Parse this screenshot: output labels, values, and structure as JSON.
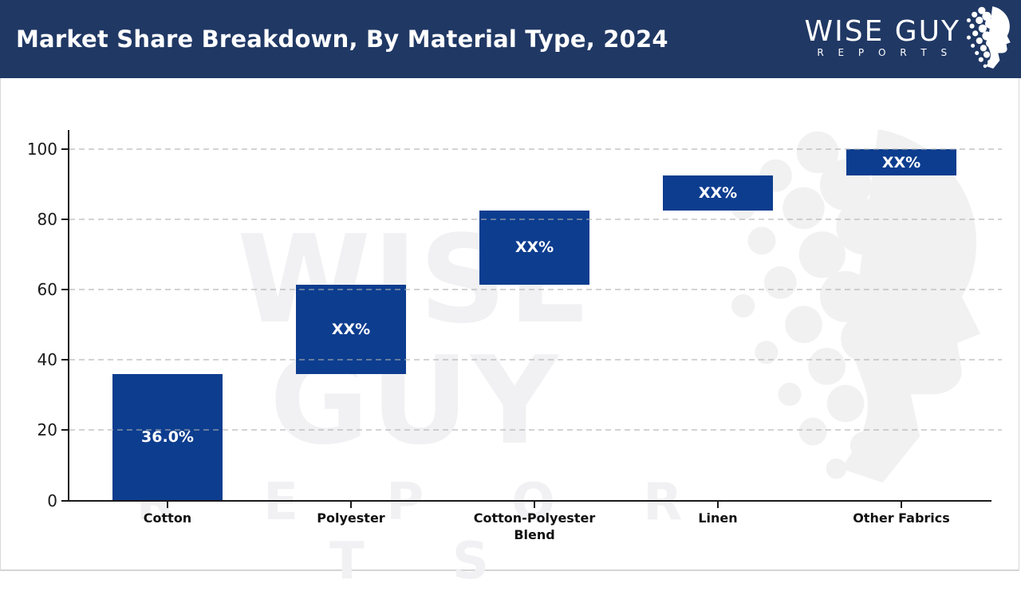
{
  "header": {
    "title": "Market Share Breakdown, By Material Type, 2024",
    "brand": {
      "name": "WISE GUY",
      "sub": "R E P O R T S"
    }
  },
  "watermark": {
    "line1": "WISE GUY",
    "line2": "R E P O R T S"
  },
  "chart_data": {
    "type": "bar",
    "subtype": "waterfall",
    "title": "Market Share Breakdown, By Material Type, 2024",
    "unit": "%",
    "categories": [
      "Cotton",
      "Polyester",
      "Cotton-Polyester\nBlend",
      "Linen",
      "Other Fabrics"
    ],
    "segments": [
      {
        "category": "Cotton",
        "start": 0,
        "end": 36,
        "value": 36.0,
        "label": "36.0%"
      },
      {
        "category": "Polyester",
        "start": 36,
        "end": 61.5,
        "value": 25.5,
        "label": "XX%"
      },
      {
        "category": "Cotton-Polyester\nBlend",
        "start": 61.5,
        "end": 82.5,
        "value": 21.0,
        "label": "XX%"
      },
      {
        "category": "Linen",
        "start": 82.5,
        "end": 92.5,
        "value": 10.0,
        "label": "XX%"
      },
      {
        "category": "Other Fabrics",
        "start": 92.5,
        "end": 100,
        "value": 7.5,
        "label": "XX%"
      }
    ],
    "yticks": [
      0,
      20,
      40,
      60,
      80,
      100
    ],
    "ylim": [
      0,
      105
    ],
    "grid": "horizontal-dashed",
    "legend": "none",
    "bar_color": "#0d3d8f",
    "bar_label_color": "#ffffff",
    "axis_color": "#1a1a1a",
    "gridline_color": "#d9d9d9",
    "header_color": "#203864",
    "watermark_color": "#f1f1f3"
  }
}
